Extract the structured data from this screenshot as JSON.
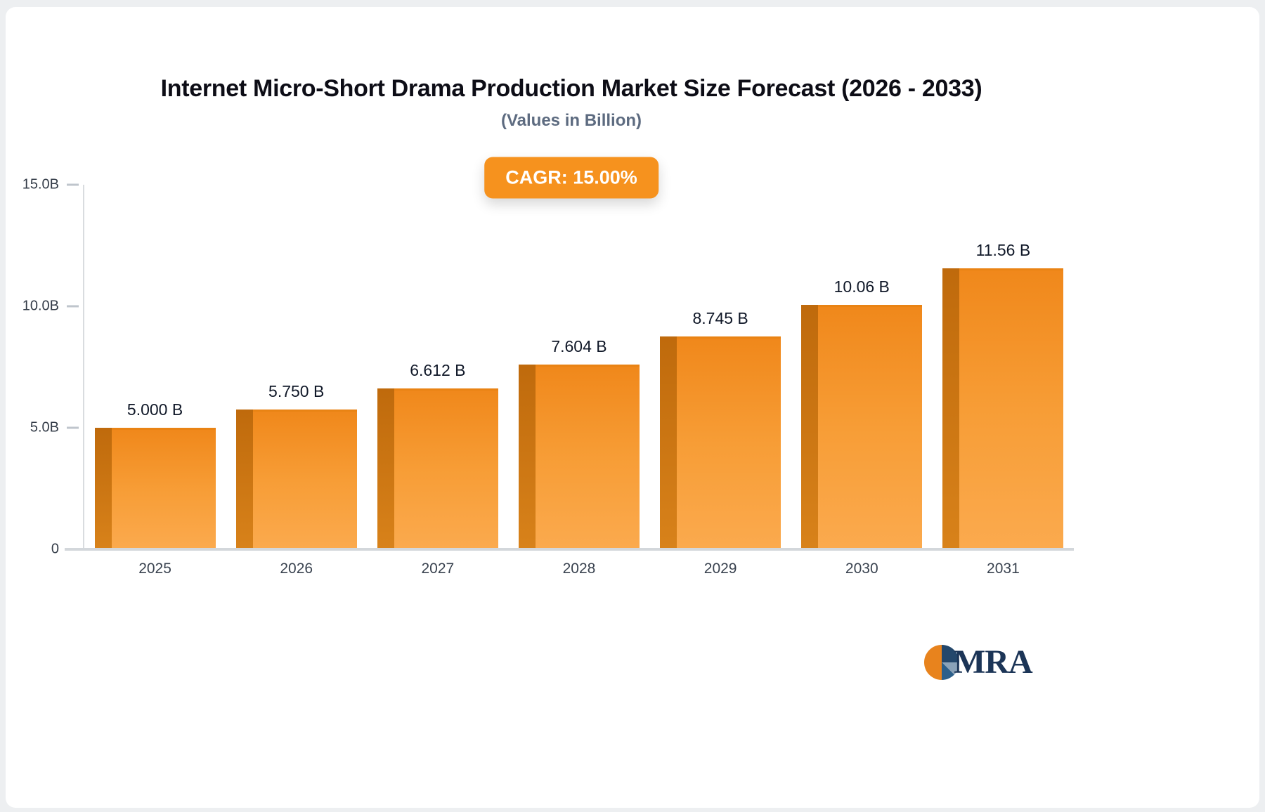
{
  "chart_data": {
    "type": "bar",
    "title": "Internet Micro-Short Drama Production Market Size Forecast (2026 - 2033)",
    "subtitle": "(Values in Billion)",
    "cagr_label": "CAGR: 15.00%",
    "categories": [
      "2025",
      "2026",
      "2027",
      "2028",
      "2029",
      "2030",
      "2031"
    ],
    "values": [
      5.0,
      5.75,
      6.612,
      7.604,
      8.745,
      10.06,
      11.56
    ],
    "value_labels": [
      "5.000 B",
      "5.750 B",
      "6.612 B",
      "7.604 B",
      "8.745 B",
      "10.06 B",
      "11.56 B"
    ],
    "xlabel": "",
    "ylabel": "",
    "ylim": [
      0,
      15
    ],
    "yticks": [
      {
        "value": 15,
        "label": "15.0B"
      },
      {
        "value": 10,
        "label": "10.0B"
      },
      {
        "value": 5,
        "label": "5.0B"
      },
      {
        "value": 0,
        "label": "0"
      }
    ],
    "grid": false,
    "legend": false,
    "bar_color": "#f6921e",
    "bar_side_color": "#c97413",
    "accent_color": "#f6921e"
  },
  "logo": {
    "text": "MRA"
  }
}
